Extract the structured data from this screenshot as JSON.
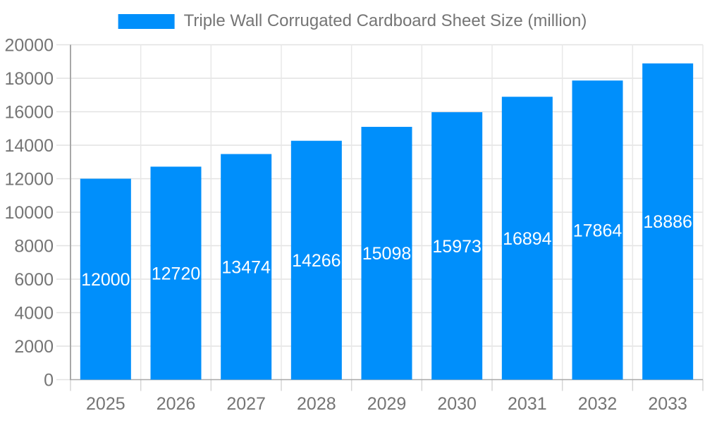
{
  "chart_data": {
    "type": "bar",
    "title": "Triple Wall Corrugated Cardboard Sheet Size (million)",
    "legend": {
      "position": "top",
      "items": [
        {
          "label": "Triple Wall Corrugated Cardboard Sheet Size (million)",
          "color": "#008FFB"
        }
      ]
    },
    "categories": [
      "2025",
      "2026",
      "2027",
      "2028",
      "2029",
      "2030",
      "2031",
      "2032",
      "2033"
    ],
    "values": [
      12000,
      12720,
      13474,
      14266,
      15098,
      15973,
      16894,
      17864,
      18886
    ],
    "series": [
      {
        "name": "Triple Wall Corrugated Cardboard Sheet Size (million)",
        "values": [
          12000,
          12720,
          13474,
          14266,
          15098,
          15973,
          16894,
          17864,
          18886
        ]
      }
    ],
    "xlabel": "",
    "ylabel": "",
    "ylim": [
      0,
      20000
    ],
    "ytick_step": 2000,
    "ytick_labels": [
      "0",
      "2000",
      "4000",
      "6000",
      "8000",
      "10000",
      "12000",
      "14000",
      "16000",
      "18000",
      "20000"
    ],
    "grid": "on",
    "data_labels": "inside-center",
    "colors": {
      "bar": "#008FFB",
      "data_label": "#ffffff",
      "axis_label": "#757575",
      "grid_h": "#e2e2e2",
      "grid_v": "#e8e8e8",
      "tick": "#d6d6d6",
      "axis_line": "#a8a8a8",
      "legend_text": "#757575"
    }
  }
}
